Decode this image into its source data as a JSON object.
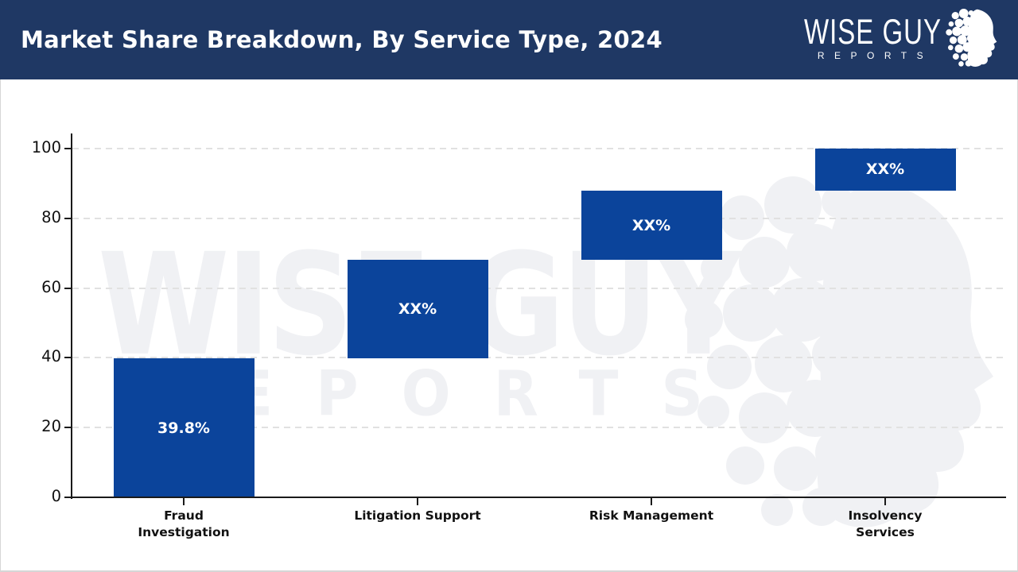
{
  "header": {
    "title": "Market Share Breakdown, By Service Type, 2024",
    "logo": {
      "line1": "WISE GUY",
      "line2": "REPORTS"
    }
  },
  "watermark": {
    "line1": "WISE GUY",
    "line2": "REPORTS"
  },
  "colors": {
    "header_bg": "#1f3864",
    "bar": "#0b449b",
    "axis": "#1a1a1a",
    "grid": "#e1e1e1",
    "watermark": "#f0f1f4",
    "frame": "#d6d6d6"
  },
  "chart_data": {
    "type": "bar",
    "variant": "waterfall",
    "title": "Market Share Breakdown, By Service Type, 2024",
    "xlabel": "",
    "ylabel": "",
    "ylim": [
      0,
      100
    ],
    "yticks": [
      0,
      20,
      40,
      60,
      80,
      100
    ],
    "grid": "horizontal-dashed",
    "legend": "none",
    "categories": [
      "Fraud\nInvestigation",
      "Litigation Support",
      "Risk Management",
      "Insolvency\nServices"
    ],
    "series": [
      {
        "name": "Market Share",
        "segments": [
          {
            "category": "Fraud Investigation",
            "start": 0,
            "end": 39.8,
            "label": "39.8%"
          },
          {
            "category": "Litigation Support",
            "start": 39.8,
            "end": 68,
            "label": "XX%"
          },
          {
            "category": "Risk Management",
            "start": 68,
            "end": 88,
            "label": "XX%"
          },
          {
            "category": "Insolvency Services",
            "start": 88,
            "end": 100,
            "label": "XX%"
          }
        ]
      }
    ]
  }
}
